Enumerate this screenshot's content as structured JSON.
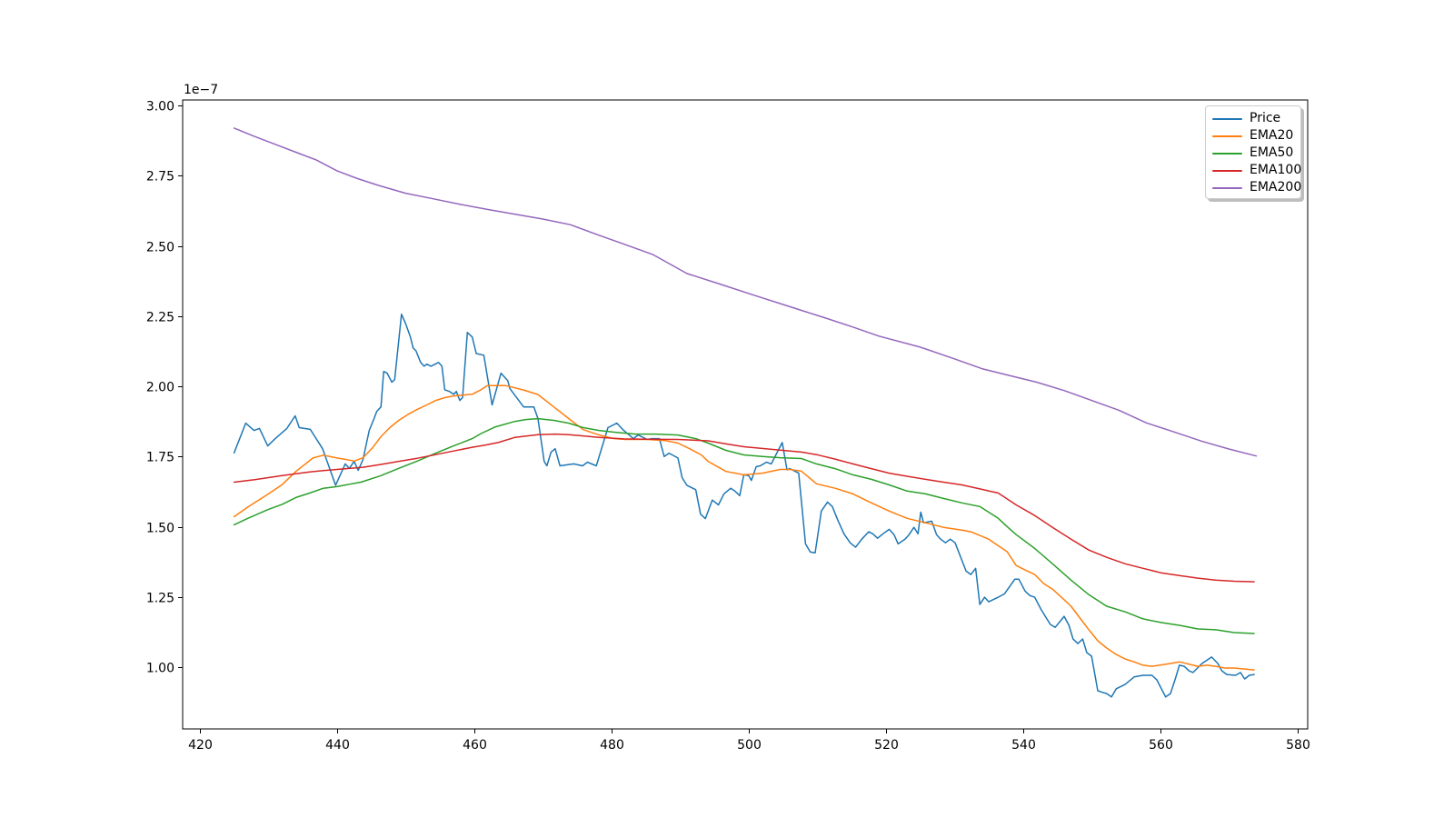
{
  "window": {
    "background": "#ffffff"
  },
  "chart_data": {
    "type": "line",
    "title": "",
    "xlabel": "",
    "ylabel": "",
    "offset_text": "1e−7",
    "grid": false,
    "xlim": [
      417.5,
      581.5
    ],
    "ylim": [
      0.78,
      3.02
    ],
    "x_ticks": {
      "values": [
        420,
        440,
        460,
        480,
        500,
        520,
        540,
        560,
        580
      ],
      "labels": [
        "420",
        "440",
        "460",
        "480",
        "500",
        "520",
        "540",
        "560",
        "580"
      ]
    },
    "y_ticks": {
      "values": [
        1.0,
        1.25,
        1.5,
        1.75,
        2.0,
        2.25,
        2.5,
        2.75,
        3.0
      ],
      "labels": [
        "1.00",
        "1.25",
        "1.50",
        "1.75",
        "2.00",
        "2.25",
        "2.50",
        "2.75",
        "3.00"
      ]
    },
    "legend": {
      "position": "upper right"
    },
    "axis_color": "#000000",
    "series": [
      {
        "name": "Price",
        "color": "#1f77b4",
        "x": [
          425.0,
          426.7,
          427.9,
          428.7,
          429.9,
          431.0,
          432.7,
          433.9,
          434.5,
          436.1,
          437.9,
          439.8,
          441.2,
          441.8,
          442.5,
          443.1,
          443.8,
          444.7,
          445.4,
          445.8,
          446.4,
          446.8,
          447.3,
          448.0,
          448.4,
          449.4,
          450.0,
          450.7,
          451.1,
          451.5,
          452.2,
          452.7,
          453.1,
          453.7,
          454.8,
          455.3,
          455.7,
          456.4,
          457.0,
          457.4,
          457.9,
          458.3,
          459.0,
          459.7,
          460.3,
          461.4,
          462.6,
          463.9,
          464.9,
          465.2,
          467.2,
          468.7,
          469.3,
          470.2,
          470.6,
          471.2,
          471.8,
          472.5,
          474.5,
          475.8,
          476.5,
          477.8,
          479.5,
          480.8,
          481.8,
          483.2,
          483.9,
          485.2,
          485.9,
          487.0,
          487.7,
          488.4,
          489.7,
          490.3,
          491.0,
          492.3,
          493.0,
          493.7,
          494.7,
          495.6,
          496.4,
          497.4,
          498.0,
          498.7,
          499.3,
          500.0,
          500.4,
          501.1,
          501.7,
          502.6,
          503.3,
          504.9,
          505.6,
          506.0,
          507.3,
          508.3,
          509.0,
          509.7,
          510.6,
          511.5,
          512.2,
          513.0,
          513.9,
          514.8,
          515.6,
          516.5,
          517.5,
          518.1,
          518.8,
          519.6,
          520.5,
          521.2,
          521.8,
          522.8,
          523.4,
          524.1,
          524.7,
          525.1,
          525.5,
          526.7,
          527.4,
          528.0,
          528.7,
          529.4,
          530.1,
          531.7,
          532.4,
          533.1,
          533.7,
          534.4,
          535.0,
          536.4,
          537.3,
          538.8,
          539.4,
          540.3,
          541.0,
          541.7,
          542.6,
          543.4,
          544.0,
          544.7,
          546.0,
          546.7,
          547.3,
          548.0,
          548.7,
          549.3,
          550.0,
          550.9,
          551.6,
          552.2,
          552.9,
          553.6,
          554.9,
          556.2,
          557.5,
          558.8,
          559.5,
          560.8,
          561.5,
          562.2,
          562.8,
          563.5,
          564.2,
          564.8,
          566.1,
          567.5,
          568.4,
          569.0,
          569.7,
          571.0,
          571.7,
          572.3,
          573.0,
          573.7
        ],
        "y": [
          1.763,
          1.869,
          1.843,
          1.85,
          1.788,
          1.814,
          1.85,
          1.895,
          1.853,
          1.847,
          1.778,
          1.648,
          1.724,
          1.708,
          1.733,
          1.701,
          1.74,
          1.843,
          1.885,
          1.911,
          1.927,
          2.053,
          2.047,
          2.015,
          2.024,
          2.257,
          2.224,
          2.176,
          2.137,
          2.127,
          2.085,
          2.072,
          2.079,
          2.072,
          2.085,
          2.072,
          1.988,
          1.982,
          1.972,
          1.982,
          1.95,
          1.96,
          2.192,
          2.176,
          2.117,
          2.111,
          1.934,
          2.047,
          2.02,
          1.992,
          1.927,
          1.927,
          1.885,
          1.733,
          1.717,
          1.766,
          1.778,
          1.717,
          1.724,
          1.717,
          1.73,
          1.717,
          1.853,
          1.869,
          1.843,
          1.814,
          1.827,
          1.811,
          1.814,
          1.814,
          1.75,
          1.762,
          1.745,
          1.675,
          1.648,
          1.632,
          1.545,
          1.529,
          1.595,
          1.578,
          1.617,
          1.637,
          1.627,
          1.611,
          1.685,
          1.682,
          1.665,
          1.714,
          1.717,
          1.73,
          1.724,
          1.8,
          1.703,
          1.707,
          1.691,
          1.439,
          1.41,
          1.407,
          1.556,
          1.588,
          1.572,
          1.524,
          1.475,
          1.443,
          1.427,
          1.456,
          1.482,
          1.475,
          1.459,
          1.475,
          1.491,
          1.472,
          1.439,
          1.456,
          1.472,
          1.498,
          1.475,
          1.552,
          1.514,
          1.52,
          1.472,
          1.456,
          1.443,
          1.456,
          1.443,
          1.342,
          1.33,
          1.352,
          1.223,
          1.249,
          1.233,
          1.249,
          1.261,
          1.313,
          1.313,
          1.271,
          1.255,
          1.249,
          1.207,
          1.175,
          1.152,
          1.142,
          1.181,
          1.149,
          1.1,
          1.084,
          1.1,
          1.052,
          1.039,
          0.916,
          0.91,
          0.906,
          0.894,
          0.923,
          0.939,
          0.965,
          0.971,
          0.971,
          0.955,
          0.894,
          0.906,
          0.958,
          1.007,
          1.003,
          0.987,
          0.981,
          1.013,
          1.036,
          1.013,
          0.987,
          0.974,
          0.971,
          0.981,
          0.958,
          0.971,
          0.974
        ]
      },
      {
        "name": "EMA20",
        "color": "#ff7f0e",
        "x": [
          425.0,
          427.0,
          430.0,
          432.0,
          434.0,
          436.5,
          438.0,
          440.0,
          441.2,
          442.5,
          443.8,
          445.1,
          446.4,
          447.7,
          449.0,
          450.4,
          451.7,
          453.1,
          454.4,
          455.7,
          457.0,
          458.3,
          459.7,
          461.0,
          461.9,
          464.6,
          467.2,
          469.3,
          471.6,
          473.8,
          475.9,
          478.2,
          480.4,
          482.1,
          485.2,
          487.8,
          489.7,
          491.4,
          493.1,
          494.1,
          496.7,
          499.3,
          502.0,
          504.6,
          506.0,
          507.7,
          509.9,
          512.6,
          515.2,
          517.9,
          520.5,
          523.1,
          525.8,
          528.4,
          531.1,
          532.4,
          535.0,
          537.7,
          539.0,
          540.3,
          541.7,
          543.0,
          544.3,
          545.6,
          547.0,
          548.3,
          549.6,
          550.9,
          552.2,
          553.6,
          554.9,
          556.2,
          557.5,
          558.8,
          561.5,
          562.8,
          565.5,
          566.8,
          568.1,
          569.4,
          570.8,
          573.7
        ],
        "y": [
          1.536,
          1.57,
          1.617,
          1.65,
          1.697,
          1.745,
          1.755,
          1.745,
          1.74,
          1.734,
          1.746,
          1.779,
          1.821,
          1.853,
          1.879,
          1.901,
          1.918,
          1.934,
          1.95,
          1.96,
          1.966,
          1.969,
          1.972,
          1.988,
          2.003,
          2.003,
          1.987,
          1.971,
          1.927,
          1.885,
          1.846,
          1.827,
          1.814,
          1.811,
          1.811,
          1.807,
          1.798,
          1.778,
          1.756,
          1.733,
          1.697,
          1.685,
          1.691,
          1.704,
          1.704,
          1.698,
          1.653,
          1.637,
          1.617,
          1.585,
          1.556,
          1.53,
          1.514,
          1.498,
          1.488,
          1.482,
          1.456,
          1.411,
          1.362,
          1.346,
          1.33,
          1.298,
          1.278,
          1.249,
          1.217,
          1.175,
          1.133,
          1.094,
          1.068,
          1.045,
          1.029,
          1.019,
          1.007,
          1.003,
          1.013,
          1.019,
          1.003,
          1.007,
          1.003,
          0.997,
          0.997,
          0.99
        ]
      },
      {
        "name": "EMA50",
        "color": "#2ca02c",
        "x": [
          425.0,
          427.0,
          430.0,
          432.0,
          434.0,
          436.0,
          438.0,
          440.0,
          441.5,
          443.5,
          446.4,
          449.0,
          451.7,
          454.4,
          457.0,
          459.7,
          461.0,
          463.0,
          465.9,
          467.5,
          469.3,
          471.6,
          473.8,
          475.9,
          478.2,
          480.4,
          483.5,
          486.5,
          489.7,
          492.3,
          494.1,
          496.7,
          499.3,
          502.0,
          504.6,
          507.7,
          509.9,
          512.6,
          515.2,
          517.9,
          520.5,
          523.1,
          525.8,
          528.4,
          531.1,
          533.7,
          536.4,
          537.7,
          539.0,
          541.7,
          544.3,
          547.0,
          549.6,
          552.2,
          554.9,
          557.5,
          560.1,
          562.8,
          565.5,
          568.1,
          570.8,
          573.7
        ],
        "y": [
          1.507,
          1.53,
          1.562,
          1.58,
          1.604,
          1.62,
          1.637,
          1.643,
          1.65,
          1.659,
          1.682,
          1.708,
          1.734,
          1.762,
          1.788,
          1.814,
          1.832,
          1.855,
          1.875,
          1.882,
          1.885,
          1.879,
          1.869,
          1.853,
          1.843,
          1.837,
          1.83,
          1.83,
          1.827,
          1.814,
          1.798,
          1.772,
          1.756,
          1.75,
          1.746,
          1.743,
          1.724,
          1.707,
          1.685,
          1.669,
          1.649,
          1.627,
          1.617,
          1.601,
          1.585,
          1.572,
          1.53,
          1.5,
          1.472,
          1.423,
          1.368,
          1.31,
          1.258,
          1.217,
          1.197,
          1.172,
          1.159,
          1.149,
          1.136,
          1.133,
          1.123,
          1.12
        ]
      },
      {
        "name": "EMA100",
        "color": "#d62728",
        "x": [
          425.0,
          428.0,
          430.0,
          432.0,
          434.0,
          436.0,
          438.0,
          440.0,
          443.8,
          446.4,
          449.0,
          451.7,
          454.4,
          457.0,
          459.7,
          461.4,
          463.5,
          465.9,
          469.3,
          471.8,
          473.8,
          478.2,
          481.8,
          485.0,
          489.7,
          494.1,
          496.7,
          499.3,
          504.6,
          507.7,
          509.9,
          512.6,
          515.2,
          517.9,
          520.5,
          523.1,
          525.8,
          528.4,
          531.1,
          533.7,
          536.4,
          539.0,
          541.7,
          544.3,
          547.0,
          549.6,
          552.2,
          554.9,
          557.5,
          560.1,
          562.8,
          565.5,
          568.1,
          570.8,
          573.7
        ],
        "y": [
          1.659,
          1.668,
          1.675,
          1.682,
          1.689,
          1.695,
          1.7,
          1.704,
          1.712,
          1.722,
          1.733,
          1.744,
          1.757,
          1.77,
          1.783,
          1.79,
          1.8,
          1.818,
          1.828,
          1.83,
          1.828,
          1.818,
          1.813,
          1.812,
          1.811,
          1.806,
          1.795,
          1.785,
          1.773,
          1.766,
          1.757,
          1.741,
          1.724,
          1.707,
          1.691,
          1.68,
          1.669,
          1.659,
          1.649,
          1.635,
          1.62,
          1.578,
          1.54,
          1.498,
          1.456,
          1.417,
          1.391,
          1.368,
          1.352,
          1.336,
          1.326,
          1.317,
          1.31,
          1.306,
          1.304
        ]
      },
      {
        "name": "EMA200",
        "color": "#9467bd",
        "x": [
          425.0,
          428.0,
          431.0,
          434.0,
          437.0,
          440.0,
          443.0,
          446.0,
          450.0,
          454.0,
          458.0,
          462.0,
          466.0,
          470.0,
          474.0,
          478.0,
          482.0,
          486.0,
          491.0,
          496.0,
          501.0,
          506.0,
          511.0,
          515.0,
          519.0,
          525.0,
          530.0,
          534.0,
          538.0,
          542.0,
          546.0,
          550.0,
          554.0,
          558.0,
          562.0,
          566.0,
          570.0,
          574.0
        ],
        "y": [
          2.92,
          2.89,
          2.862,
          2.834,
          2.806,
          2.768,
          2.74,
          2.716,
          2.688,
          2.668,
          2.648,
          2.63,
          2.613,
          2.596,
          2.576,
          2.54,
          2.505,
          2.47,
          2.402,
          2.363,
          2.323,
          2.284,
          2.245,
          2.213,
          2.179,
          2.14,
          2.098,
          2.063,
          2.039,
          2.015,
          1.985,
          1.95,
          1.915,
          1.87,
          1.838,
          1.805,
          1.777,
          1.752
        ]
      }
    ]
  }
}
